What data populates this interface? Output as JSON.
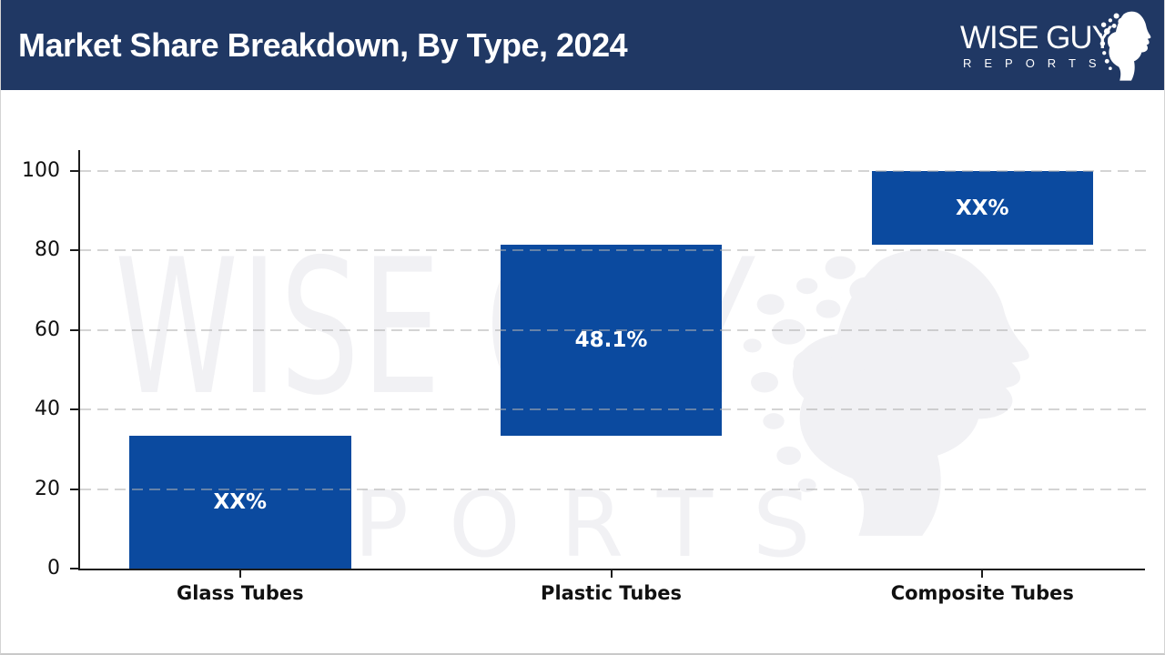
{
  "header": {
    "title": "Market Share Breakdown, By Type, 2024",
    "bg_color": "#203864"
  },
  "logo": {
    "main": "WISE GUY",
    "sub": "REPORTS"
  },
  "watermark": {
    "line1": "WISE GUY",
    "line2": "REPORTS"
  },
  "chart_data": {
    "type": "bar",
    "subtype": "floating-waterfall",
    "title": "Market Share Breakdown, By Type, 2024",
    "categories": [
      "Glass Tubes",
      "Plastic Tubes",
      "Composite Tubes"
    ],
    "bars": [
      {
        "category": "Glass Tubes",
        "start": 0,
        "end": 33.3,
        "value_label": "XX%"
      },
      {
        "category": "Plastic Tubes",
        "start": 33.3,
        "end": 81.4,
        "value_label": "48.1%"
      },
      {
        "category": "Composite Tubes",
        "start": 81.4,
        "end": 100,
        "value_label": "XX%"
      }
    ],
    "xlabel": "",
    "ylabel": "",
    "ylim": [
      0,
      100
    ],
    "yticks": [
      0,
      20,
      40,
      60,
      80,
      100
    ],
    "bar_color": "#0b4a9f",
    "value_label_color": "#ffffff",
    "grid": {
      "axis": "y",
      "style": "dashed",
      "drawn_over_bars": true
    },
    "legend": "none"
  }
}
